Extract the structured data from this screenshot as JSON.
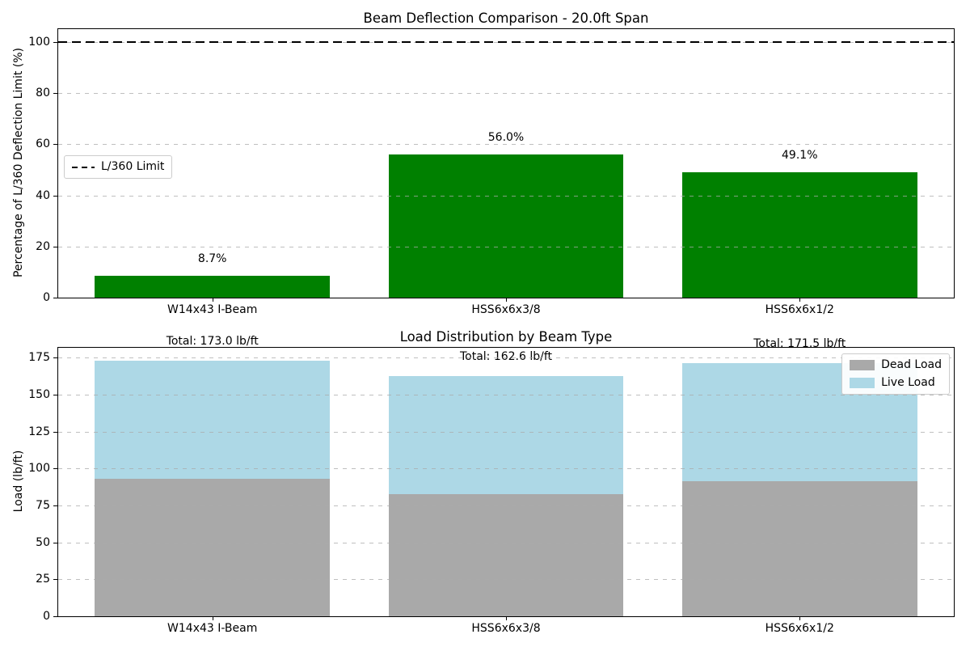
{
  "chart_data": [
    {
      "type": "bar",
      "title": "Beam Deflection Comparison - 20.0ft Span",
      "ylabel": "Percentage of L/360 Deflection Limit (%)",
      "xlabel": "",
      "categories": [
        "W14x43 I-Beam",
        "HSS6x6x3/8",
        "HSS6x6x1/2"
      ],
      "values": [
        8.7,
        56.0,
        49.1
      ],
      "value_labels": [
        "8.7%",
        "56.0%",
        "49.1%"
      ],
      "bar_color": "#008000",
      "ylim": [
        0,
        105
      ],
      "yticks": [
        0,
        20,
        40,
        60,
        80,
        100
      ],
      "grid": {
        "axis": "y",
        "style": "dashed",
        "color": "#bfbfbf"
      },
      "reference_line": {
        "value": 100,
        "label": "L/360 Limit",
        "color": "#000000",
        "style": "dashed"
      },
      "legend": {
        "position": "center-left",
        "entries": [
          {
            "label": "L/360 Limit",
            "swatch": "dashed-line",
            "color": "#000000"
          }
        ]
      }
    },
    {
      "type": "bar-stacked",
      "title": "Load Distribution by Beam Type",
      "ylabel": "Load (lb/ft)",
      "xlabel": "",
      "categories": [
        "W14x43 I-Beam",
        "HSS6x6x3/8",
        "HSS6x6x1/2"
      ],
      "series": [
        {
          "name": "Dead Load",
          "color": "#a9a9a9",
          "values": [
            93.0,
            82.6,
            91.5
          ]
        },
        {
          "name": "Live Load",
          "color": "#add8e6",
          "values": [
            80.0,
            80.0,
            80.0
          ]
        }
      ],
      "totals": [
        173.0,
        162.6,
        171.5
      ],
      "total_labels": [
        "Total: 173.0 lb/ft",
        "Total: 162.6 lb/ft",
        "Total: 171.5 lb/ft"
      ],
      "ylim": [
        0,
        181.7
      ],
      "yticks": [
        0,
        25,
        50,
        75,
        100,
        125,
        150,
        175
      ],
      "grid": {
        "axis": "y",
        "style": "dashed",
        "color": "#bfbfbf"
      },
      "legend": {
        "position": "top-right",
        "entries": [
          {
            "label": "Dead Load",
            "swatch": "patch",
            "color": "#a9a9a9"
          },
          {
            "label": "Live Load",
            "swatch": "patch",
            "color": "#add8e6"
          }
        ]
      }
    }
  ]
}
